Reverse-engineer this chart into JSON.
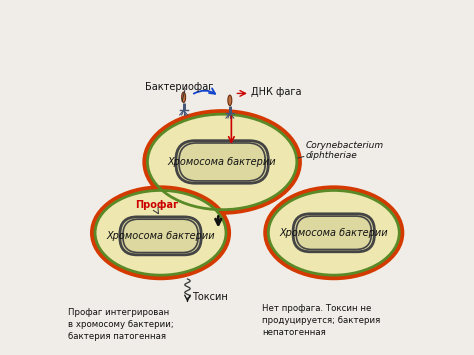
{
  "bg_color": "#f0ede8",
  "cell_outer_color": "#d43a00",
  "cell_fill_color": "#eee8b0",
  "cell_membrane_color": "#5a8a28",
  "chromosome_color": "#444444",
  "chromosome_fill": "#ddd8a0",
  "text_color": "#111111",
  "red_text_color": "#cc0000",
  "blue_arrow_color": "#1144cc",
  "label_bacteriophage": "Бактериофаг",
  "label_dna": "ДНК фага",
  "label_coryne": "Corynebacterium\ndiphtheriae",
  "label_chromosome": "Хромосома бактерии",
  "label_prophage": "Профаг",
  "label_toxin": "Токсин",
  "label_left_bottom": "Профаг интегрирован\nв хромосому бактерии;\nбактерия патогенная",
  "label_right_bottom": "Нет профага. Токсин не\nпродуцируется; бактерия\nнепатогенная",
  "font_size_main": 7.0,
  "font_size_label": 6.2,
  "font_size_italic": 6.5
}
